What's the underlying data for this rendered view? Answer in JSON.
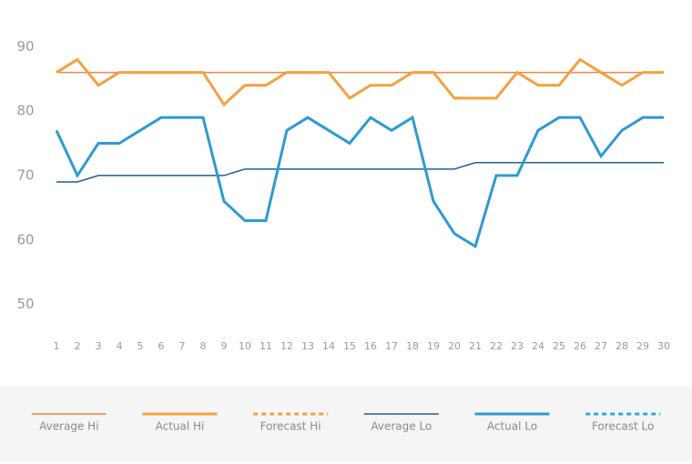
{
  "chart_data": {
    "type": "line",
    "x": [
      1,
      2,
      3,
      4,
      5,
      6,
      7,
      8,
      9,
      10,
      11,
      12,
      13,
      14,
      15,
      16,
      17,
      18,
      19,
      20,
      21,
      22,
      23,
      24,
      25,
      26,
      27,
      28,
      29,
      30
    ],
    "xlim": [
      1,
      30
    ],
    "xticks": [
      1,
      2,
      3,
      4,
      5,
      6,
      7,
      8,
      9,
      10,
      11,
      12,
      13,
      14,
      15,
      16,
      17,
      18,
      19,
      20,
      21,
      22,
      23,
      24,
      25,
      26,
      27,
      28,
      29,
      30
    ],
    "ylim": [
      45,
      93
    ],
    "yticks": [
      50,
      60,
      70,
      80,
      90
    ],
    "grid": false,
    "legend": "bottom",
    "series": [
      {
        "name": "Average Hi",
        "color": "#e8864a",
        "line_width": 1.5,
        "dashed": false,
        "values": [
          86,
          86,
          86,
          86,
          86,
          86,
          86,
          86,
          86,
          86,
          86,
          86,
          86,
          86,
          86,
          86,
          86,
          86,
          86,
          86,
          86,
          86,
          86,
          86,
          86,
          86,
          86,
          86,
          86,
          86
        ]
      },
      {
        "name": "Actual Hi",
        "color": "#f5a03f",
        "line_width": 3,
        "dashed": false,
        "values": [
          86,
          88,
          84,
          86,
          86,
          86,
          86,
          86,
          81,
          84,
          84,
          86,
          86,
          86,
          82,
          84,
          84,
          86,
          86,
          82,
          82,
          82,
          86,
          84,
          84,
          88,
          86,
          84,
          86,
          86
        ]
      },
      {
        "name": "Forecast Hi",
        "color": "#f5a03f",
        "line_width": 3,
        "dashed": true,
        "values": [
          null,
          null,
          null,
          null,
          null,
          null,
          null,
          null,
          null,
          null,
          null,
          null,
          null,
          null,
          null,
          null,
          null,
          null,
          null,
          null,
          null,
          null,
          null,
          null,
          null,
          null,
          null,
          null,
          null,
          null
        ]
      },
      {
        "name": "Average Lo",
        "color": "#1f5f8b",
        "line_width": 1.5,
        "dashed": false,
        "values": [
          69,
          69,
          70,
          70,
          70,
          70,
          70,
          70,
          70,
          71,
          71,
          71,
          71,
          71,
          71,
          71,
          71,
          71,
          71,
          71,
          72,
          72,
          72,
          72,
          72,
          72,
          72,
          72,
          72,
          72
        ]
      },
      {
        "name": "Actual Lo",
        "color": "#2e9ad2",
        "line_width": 3,
        "dashed": false,
        "values": [
          77,
          70,
          75,
          75,
          77,
          79,
          79,
          79,
          66,
          63,
          63,
          77,
          79,
          77,
          75,
          79,
          77,
          79,
          66,
          61,
          59,
          70,
          70,
          77,
          79,
          79,
          73,
          77,
          79,
          79
        ]
      },
      {
        "name": "Forecast Lo",
        "color": "#2eaad2",
        "line_width": 3,
        "dashed": true,
        "values": [
          null,
          null,
          null,
          null,
          null,
          null,
          null,
          null,
          null,
          null,
          null,
          null,
          null,
          null,
          null,
          null,
          null,
          null,
          null,
          null,
          null,
          null,
          null,
          null,
          null,
          null,
          null,
          null,
          null,
          null
        ]
      }
    ]
  }
}
